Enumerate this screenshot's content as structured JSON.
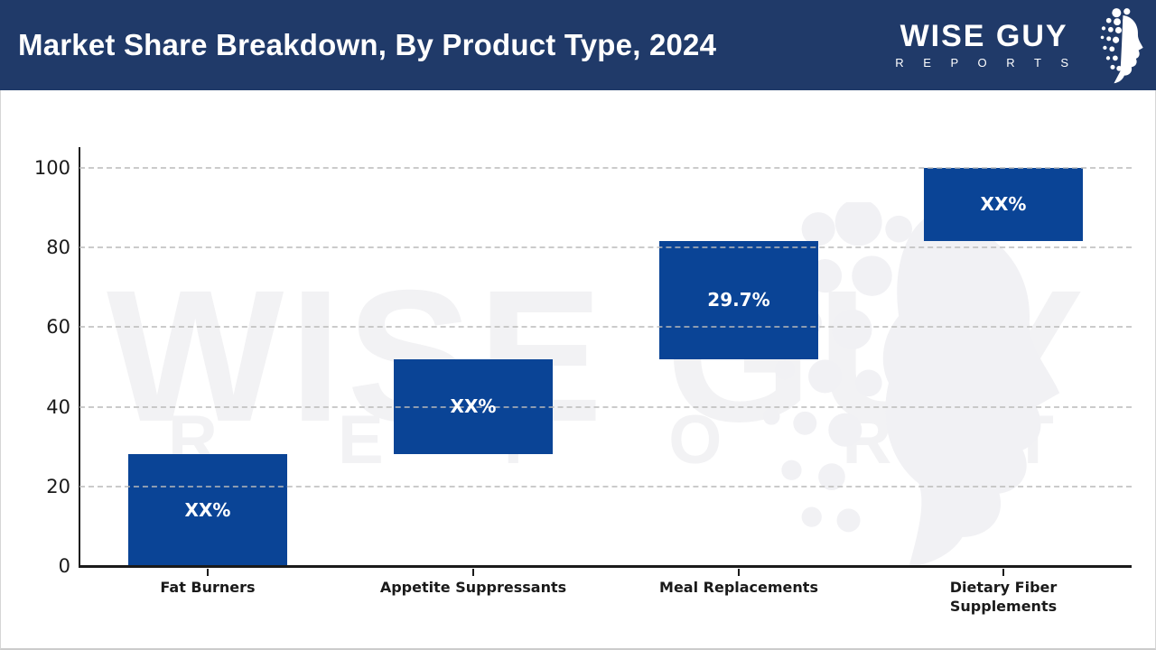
{
  "header": {
    "title": "Market Share Breakdown, By Product Type, 2024",
    "bg_color": "#203a69",
    "logo": {
      "brand": "WISE GUY",
      "sub": "R E P O R T S"
    }
  },
  "watermark": {
    "brand": "WISE GUY",
    "sub": "R E P O R T S"
  },
  "chart_data": {
    "type": "bar",
    "subtype": "floating_segment_breakdown",
    "title": "Market Share Breakdown, By Product Type, 2024",
    "categories": [
      "Fat Burners",
      "Appetite Suppressants",
      "Meal Replacements",
      "Dietary Fiber Supplements"
    ],
    "series": [
      {
        "name": "Market share (%)",
        "segments": [
          {
            "category": "Fat Burners",
            "start": 0,
            "end": 28.2,
            "label": "XX%"
          },
          {
            "category": "Appetite Suppressants",
            "start": 28.2,
            "end": 52.0,
            "label": "XX%"
          },
          {
            "category": "Meal Replacements",
            "start": 52.0,
            "end": 81.7,
            "label": "29.7%"
          },
          {
            "category": "Dietary Fiber Supplements",
            "start": 81.7,
            "end": 100,
            "label": "XX%"
          }
        ]
      }
    ],
    "ylim": [
      0,
      105
    ],
    "yticks": [
      0,
      20,
      40,
      60,
      80,
      100
    ],
    "grid": "horizontal_dashed",
    "legend": "none",
    "bar_color": "#0a4496",
    "bar_label_color": "#ffffff",
    "axis_color": "#1a1a1a",
    "gridline_color": "#b9b9b9",
    "text_color": "#1a1a1a"
  }
}
